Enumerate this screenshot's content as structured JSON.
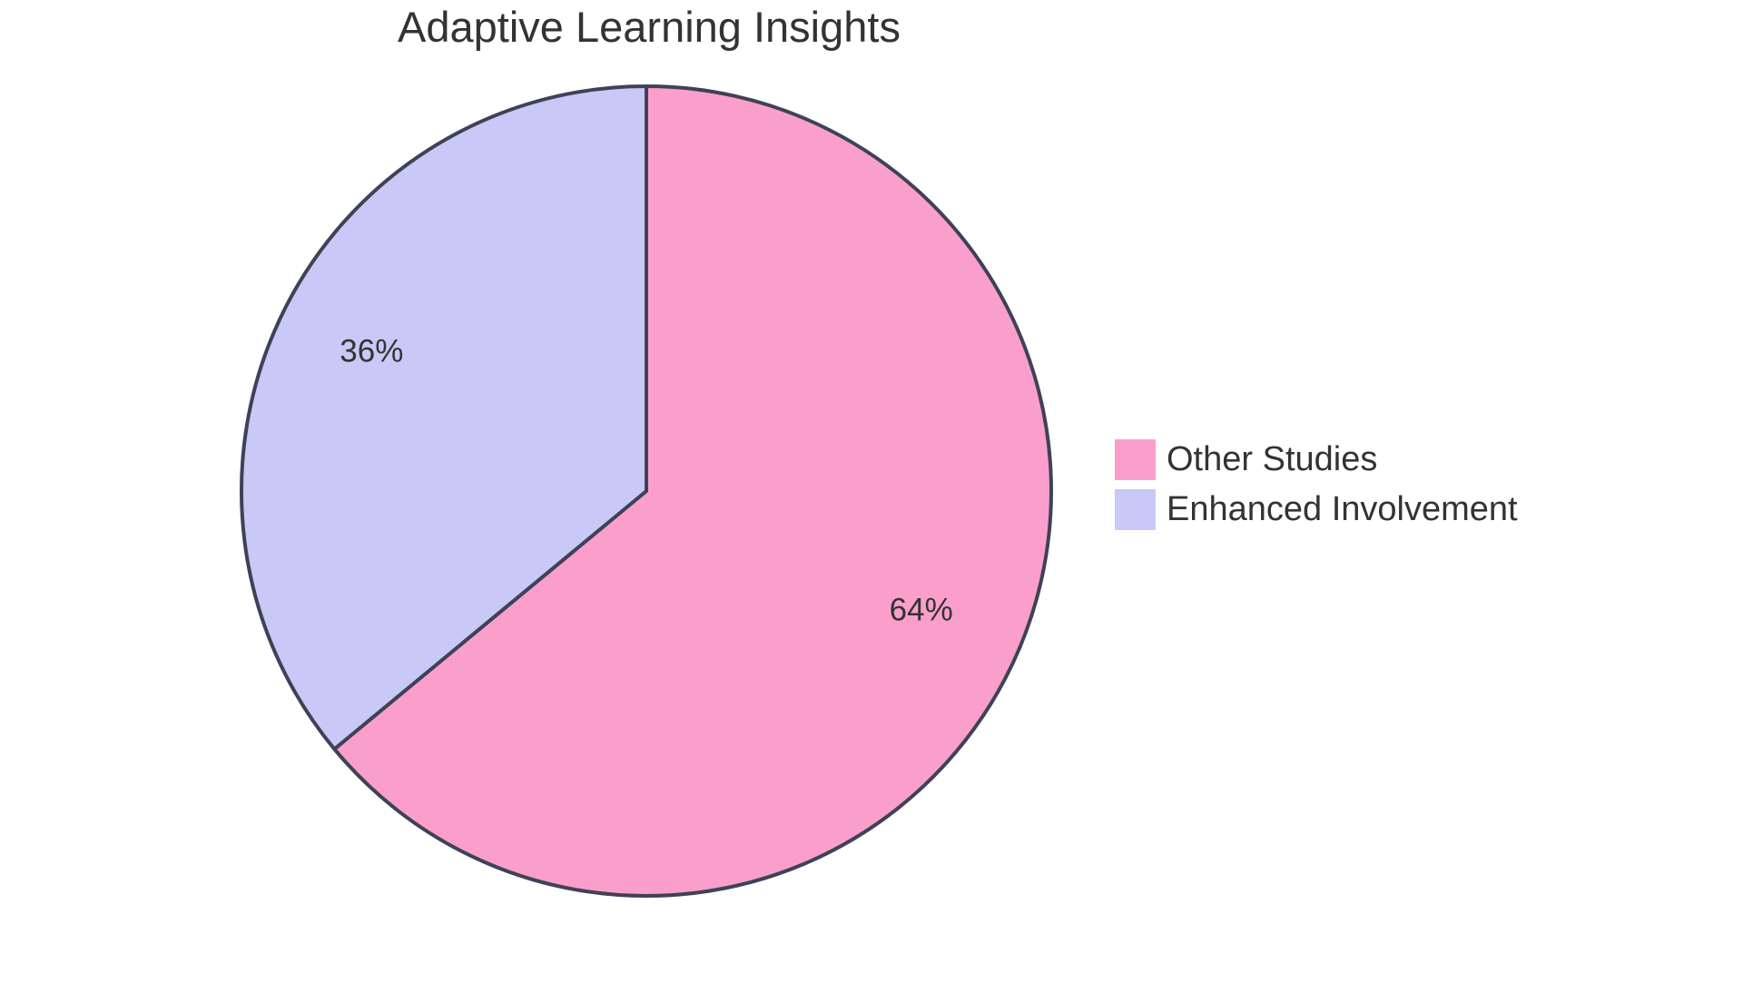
{
  "title": "Adaptive Learning Insights",
  "chart_data": {
    "type": "pie",
    "title": "Adaptive Learning Insights",
    "series": [
      {
        "label": "Other Studies",
        "value": 64,
        "display": "64%",
        "color": "#FA9FCB"
      },
      {
        "label": "Enhanced Involvement",
        "value": 36,
        "display": "36%",
        "color": "#C9C9F7"
      }
    ],
    "start_angle_deg": 0,
    "direction": "clockwise",
    "stroke_color": "#3F4257",
    "stroke_width": 4,
    "label_color": "#333333",
    "legend_position": "right",
    "background": "#FFFFFF"
  }
}
